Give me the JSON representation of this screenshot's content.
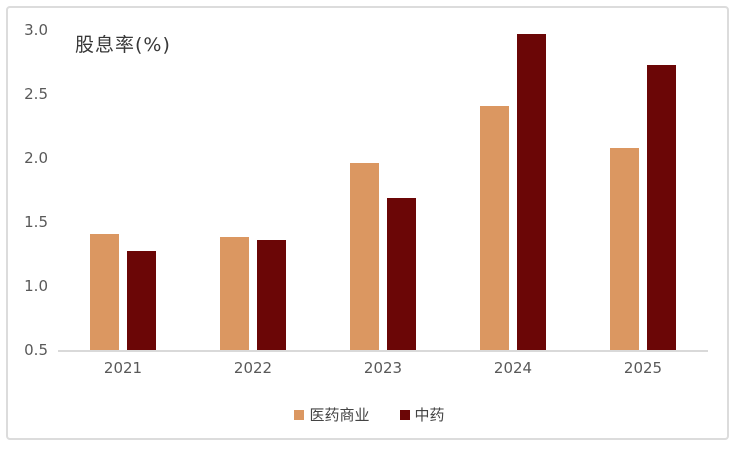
{
  "chart_data": {
    "type": "bar",
    "title": "股息率(%)",
    "categories": [
      "2021",
      "2022",
      "2023",
      "2024",
      "2025"
    ],
    "series": [
      {
        "name": "医药商业",
        "color": "#DB9761",
        "values": [
          1.41,
          1.38,
          1.96,
          2.41,
          2.08
        ]
      },
      {
        "name": "中药",
        "color": "#6B0606",
        "values": [
          1.27,
          1.36,
          1.69,
          2.97,
          2.73
        ]
      }
    ],
    "xlabel": "",
    "ylabel": "",
    "ylim": [
      0.5,
      3.0
    ],
    "yticks": [
      0.5,
      1.0,
      1.5,
      2.0,
      2.5,
      3.0
    ],
    "ytick_labels": [
      "0.5",
      "1.0",
      "1.5",
      "2.0",
      "2.5",
      "3.0"
    ],
    "grid": false,
    "legend_position": "bottom",
    "colors": {
      "axis_line": "#d9d9d9",
      "tick_label": "#595959",
      "title_text": "#383838",
      "frame_border": "#dcdcdc"
    }
  }
}
